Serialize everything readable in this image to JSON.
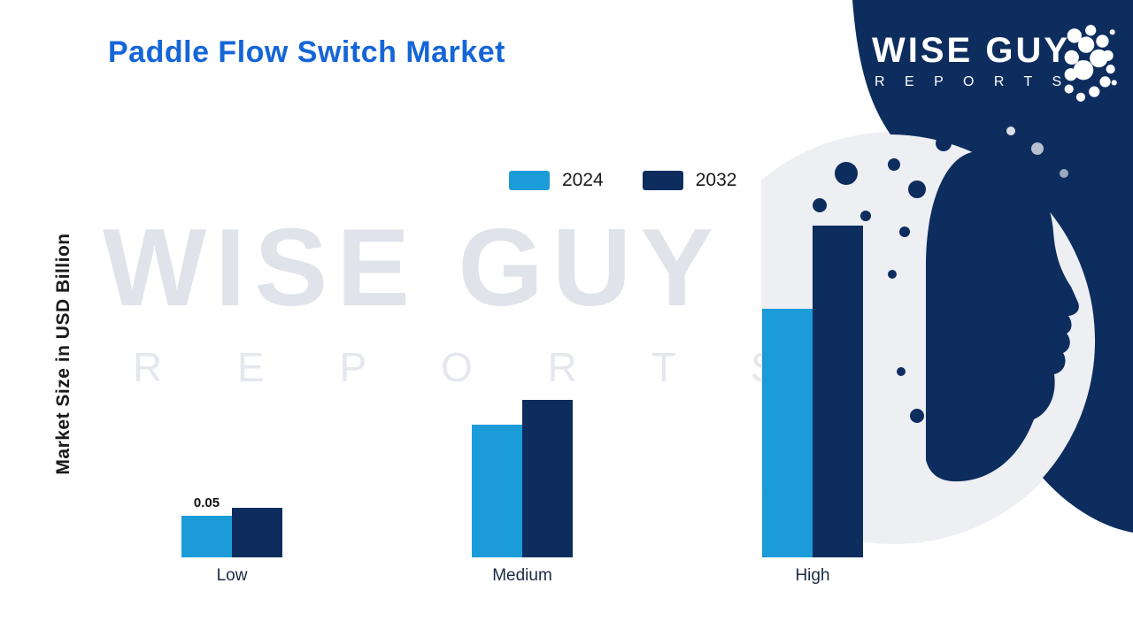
{
  "header": {
    "title": "Paddle Flow Switch Market"
  },
  "logo": {
    "line1": "WISE GUY",
    "line2": "R E P O R T S"
  },
  "watermark": {
    "line1": "WISE GUY",
    "line2": "R E P O R T S"
  },
  "colors": {
    "title_blue": "#1565d8",
    "series_2024_blue": "#1b9cd9",
    "series_2032_navy": "#0d2d5e",
    "corner_navy": "#0d2d5e",
    "watermark_gray": "#e0e3ea"
  },
  "chart_data": {
    "type": "bar",
    "title": "Paddle Flow Switch Market",
    "xlabel": "",
    "ylabel": "Market Size in USD Billion",
    "categories": [
      "Low",
      "Medium",
      "High"
    ],
    "series": [
      {
        "name": "2024",
        "color": "#1b9cd9",
        "values": [
          0.05,
          0.16,
          0.3
        ]
      },
      {
        "name": "2032",
        "color": "#0d2d5e",
        "values": [
          0.06,
          0.19,
          0.4
        ]
      }
    ],
    "data_labels": [
      {
        "series": "2024",
        "category": "Low",
        "text": "0.05"
      }
    ],
    "ylim": [
      0,
      0.4
    ],
    "grid": false,
    "legend_position": "top"
  }
}
